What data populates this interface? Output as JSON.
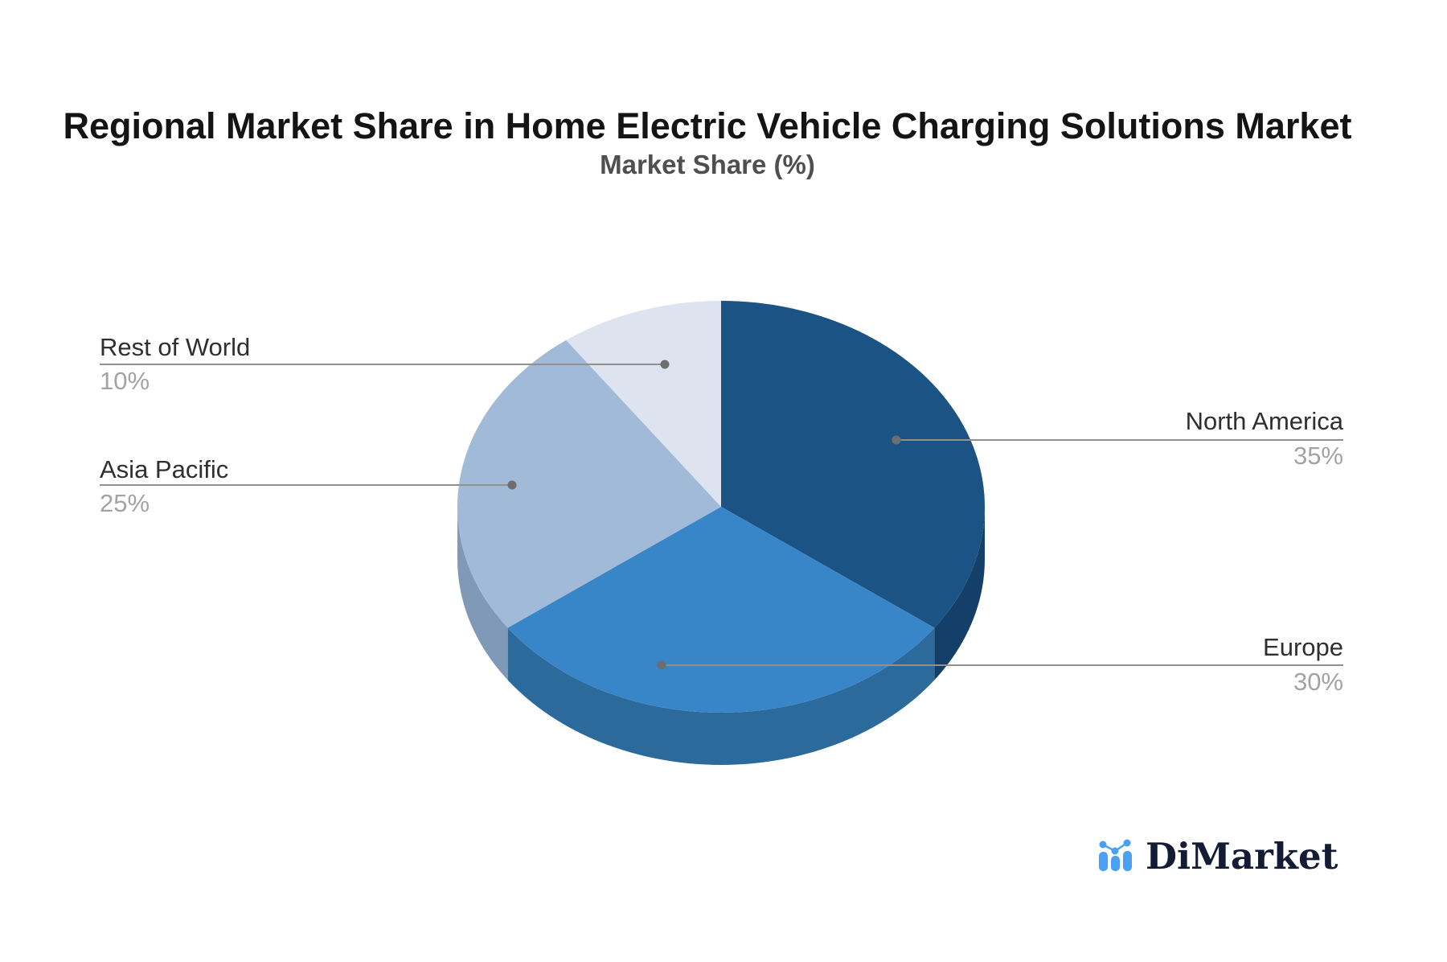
{
  "title": "Regional Market Share in Home Electric Vehicle Charging Solutions Market",
  "subtitle": "Market Share (%)",
  "chart_data": {
    "type": "pie",
    "style": "3d",
    "title": "Regional Market Share in Home Electric Vehicle Charging Solutions Market",
    "subtitle": "Market Share (%)",
    "categories": [
      "North America",
      "Europe",
      "Asia Pacific",
      "Rest of World"
    ],
    "values": [
      35,
      30,
      25,
      10
    ],
    "unit": "%",
    "value_labels": [
      "35%",
      "30%",
      "25%",
      "10%"
    ],
    "top_colors": [
      "#1b5385",
      "#3886c8",
      "#a0bad8",
      "#dee4ef"
    ],
    "side_colors": [
      "#133f68",
      "#2d6a9c",
      "#8099b7",
      "#b9c4d6"
    ],
    "start_angle_deg": 0,
    "direction": "clockwise",
    "legend": "none",
    "leader_line_color": "#909090",
    "leader_dot_color": "#6e6e6e",
    "label_text_color": "#2f2f2f",
    "value_text_color": "#a3a3a3"
  },
  "slices": [
    {
      "name": "North America",
      "value_label": "35%"
    },
    {
      "name": "Europe",
      "value_label": "30%"
    },
    {
      "name": "Asia Pacific",
      "value_label": "25%"
    },
    {
      "name": "Rest of World",
      "value_label": "10%"
    }
  ],
  "logo": {
    "text": "DiMarket",
    "icon": "bar-line-chart-icon"
  }
}
